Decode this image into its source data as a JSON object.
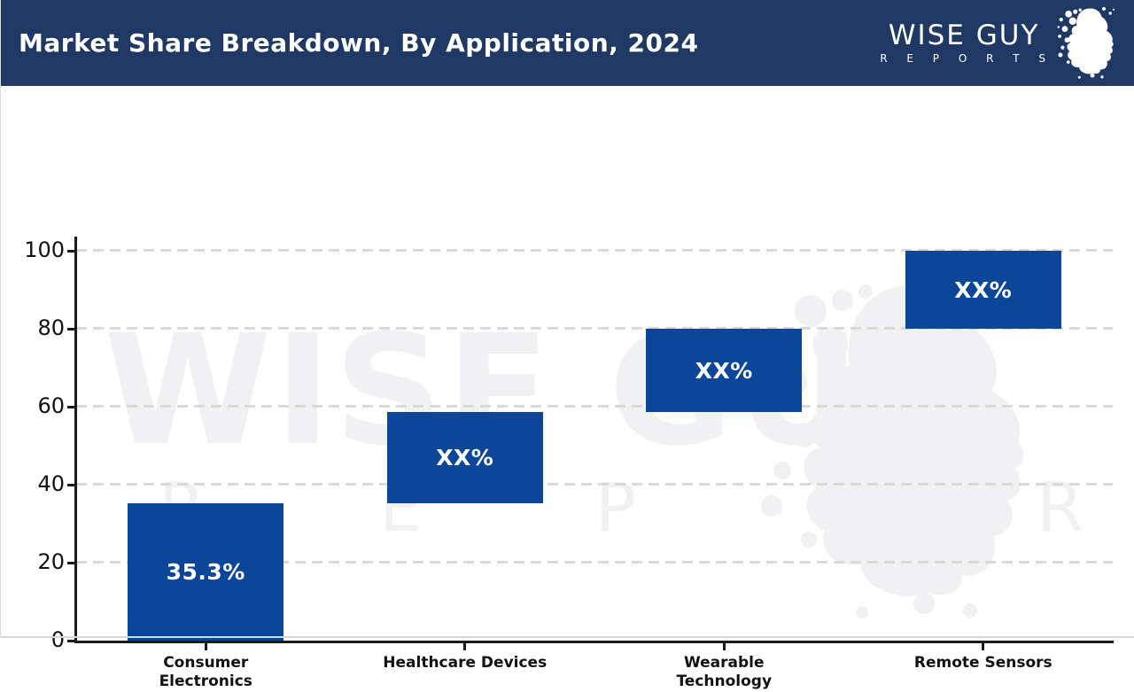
{
  "header": {
    "title": "Market Share Breakdown, By Application, 2024",
    "logo": {
      "wordmark": "WISE GUY",
      "subtext": "R E P O R T S"
    }
  },
  "watermark": {
    "line1": "WISE GUY",
    "line2": "R E P O R T S"
  },
  "chart_data": {
    "type": "bar",
    "subtype": "floating-segment-waterfall",
    "title": "Market Share Breakdown, By Application, 2024",
    "categories": [
      "Consumer Electronics",
      "Healthcare Devices",
      "Wearable Technology",
      "Remote Sensors"
    ],
    "category_lines": [
      [
        "Consumer",
        "Electronics"
      ],
      [
        "Healthcare Devices"
      ],
      [
        "Wearable",
        "Technology"
      ],
      [
        "Remote Sensors"
      ]
    ],
    "segments": [
      {
        "category": "Consumer Electronics",
        "start": 0,
        "end": 35.3,
        "label": "35.3%"
      },
      {
        "category": "Healthcare Devices",
        "start": 35.3,
        "end": 58.6,
        "label": "XX%"
      },
      {
        "category": "Wearable Technology",
        "start": 58.6,
        "end": 80,
        "label": "XX%"
      },
      {
        "category": "Remote Sensors",
        "start": 80,
        "end": 100,
        "label": "XX%"
      }
    ],
    "yticks": [
      0,
      20,
      40,
      60,
      80,
      100
    ],
    "ylim": [
      0,
      103.6
    ],
    "xlabel": "",
    "ylabel": "",
    "grid": "horizontal-dashed",
    "legend": "none",
    "colors": {
      "bar": "#0b4699",
      "header_background": "#1f3864",
      "gridline": "#d9d9d9",
      "axis": "#1a1a1a",
      "bar_label": "#ffffff",
      "watermark": "#f1f1f4"
    }
  }
}
